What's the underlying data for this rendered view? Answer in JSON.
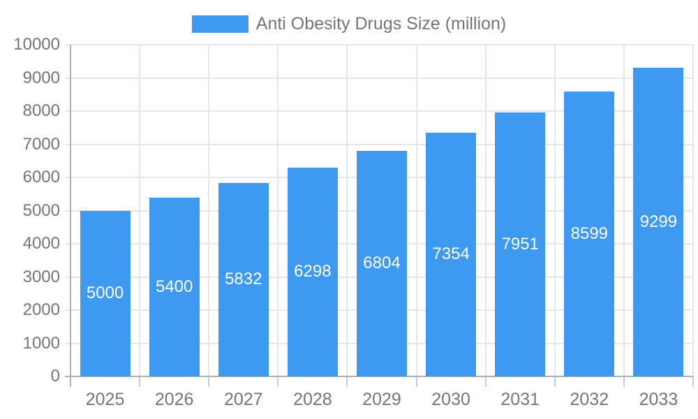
{
  "chart": {
    "background": "#FFFFFF"
  },
  "legend": {
    "label": "Anti Obesity Drugs Size (million)"
  },
  "chart_data": {
    "type": "bar",
    "title": "Anti Obesity Drugs Size (million)",
    "xlabel": "",
    "ylabel": "",
    "categories": [
      "2025",
      "2026",
      "2027",
      "2028",
      "2029",
      "2030",
      "2031",
      "2032",
      "2033"
    ],
    "series": [
      {
        "name": "Anti Obesity Drugs Size (million)",
        "color": "#3D9AF0",
        "values": [
          5000,
          5400,
          5832,
          6298,
          6804,
          7354,
          7951,
          8599,
          9299
        ]
      }
    ],
    "value_labels": [
      "5000",
      "5400",
      "5832",
      "6298",
      "6804",
      "7354",
      "7951",
      "8599",
      "9299"
    ],
    "ylim": [
      0,
      10000
    ],
    "ytick_interval": 1000,
    "yticks": [
      "0",
      "1000",
      "2000",
      "3000",
      "4000",
      "5000",
      "6000",
      "7000",
      "8000",
      "9000",
      "10000"
    ],
    "grid": "horizontal-and-vertical-band-boundaries",
    "legend_position": "top-center",
    "value_label_position": "inside-center",
    "colors": {
      "bar": "#3D9AF0",
      "grid_line": "#E6E6E6",
      "axis_line": "#B0B0B0",
      "tick_line": "#CCCCCC",
      "axis_text": "#757575",
      "legend_text": "#757575",
      "value_text": "#FFFFFF"
    }
  }
}
